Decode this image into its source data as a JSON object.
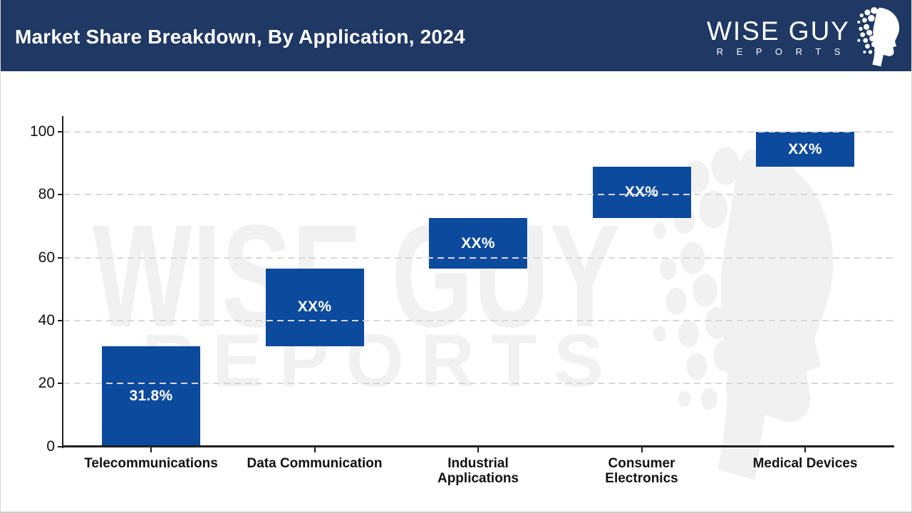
{
  "header": {
    "title": "Market Share Breakdown, By Application, 2024",
    "logo": {
      "line1": "WISE GUY",
      "line2": "REPORTS"
    }
  },
  "watermark": {
    "line1": "WISE GUY",
    "line2": "REPORTS"
  },
  "colors": {
    "header_bg": "#1f3864",
    "bar": "#0c4a9e",
    "bar_label": "#ffffff",
    "gridline": "#d8d8d8",
    "axis": "#1f1f1f",
    "watermark": "#f1f1f2",
    "footer_rule": "#cccccc"
  },
  "chart_data": {
    "type": "bar",
    "subtype": "waterfall",
    "title": "Market Share Breakdown, By Application, 2024",
    "xlabel": "",
    "ylabel": "",
    "ylim": [
      0,
      100
    ],
    "y_ticks": [
      0,
      20,
      40,
      60,
      80,
      100
    ],
    "grid": "horizontal-dashed-over-bars",
    "legend": "none",
    "categories": [
      "Telecommunications",
      "Data Communication",
      "Industrial Applications",
      "Consumer Electronics",
      "Medical Devices"
    ],
    "category_label_lines": [
      [
        "Telecommunications"
      ],
      [
        "Data Communication"
      ],
      [
        "Industrial",
        "Applications"
      ],
      [
        "Consumer",
        "Electronics"
      ],
      [
        "Medical Devices"
      ]
    ],
    "values": [
      31.8,
      24.8,
      15.9,
      16.4,
      11.1
    ],
    "segments": [
      {
        "category": "Telecommunications",
        "start": 0,
        "end": 31.8,
        "label": "31.8%"
      },
      {
        "category": "Data Communication",
        "start": 31.8,
        "end": 56.6,
        "label": "XX%"
      },
      {
        "category": "Industrial Applications",
        "start": 56.6,
        "end": 72.5,
        "label": "XX%"
      },
      {
        "category": "Consumer Electronics",
        "start": 72.5,
        "end": 88.9,
        "label": "XX%"
      },
      {
        "category": "Medical Devices",
        "start": 88.9,
        "end": 100,
        "label": "XX%"
      }
    ]
  }
}
